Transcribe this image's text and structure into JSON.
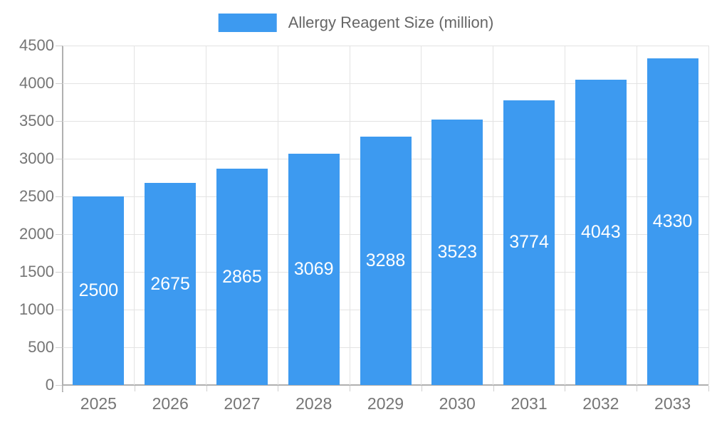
{
  "chart_data": {
    "type": "bar",
    "title": "Allergy Reagent Size (million)",
    "legend": [
      "Allergy Reagent Size (million)"
    ],
    "legend_position": "top",
    "categories": [
      "2025",
      "2026",
      "2027",
      "2028",
      "2029",
      "2030",
      "2031",
      "2032",
      "2033"
    ],
    "values": [
      2500,
      2675,
      2865,
      3069,
      3288,
      3523,
      3774,
      4043,
      4330
    ],
    "xlabel": "",
    "ylabel": "",
    "ylim": [
      0,
      4500
    ],
    "yticks": [
      0,
      500,
      1000,
      1500,
      2000,
      2500,
      3000,
      3500,
      4000,
      4500
    ],
    "grid": true,
    "value_labels": "inside-center"
  },
  "colors": {
    "bar": "#3D9AF0",
    "grid": "#E3E3E3",
    "axis": "#B0B0B0",
    "tick": "#CFCFCF",
    "axis_label": "#757575",
    "legend_label": "#666666",
    "value_label": "#FFFFFF",
    "background": "#FFFFFF"
  }
}
